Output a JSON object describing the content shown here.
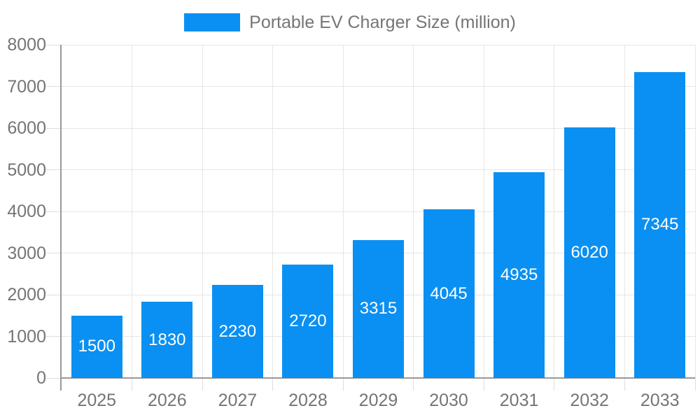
{
  "chart_data": {
    "type": "bar",
    "title": "",
    "legend_position": "top",
    "categories": [
      "2025",
      "2026",
      "2027",
      "2028",
      "2029",
      "2030",
      "2031",
      "2032",
      "2033"
    ],
    "series": [
      {
        "name": "Portable EV Charger Size (million)",
        "values": [
          1500,
          1830,
          2230,
          2720,
          3315,
          4045,
          4935,
          6020,
          7345
        ]
      }
    ],
    "xlabel": "",
    "ylabel": "",
    "ylim": [
      0,
      8000
    ],
    "yticks": [
      0,
      1000,
      2000,
      3000,
      4000,
      5000,
      6000,
      7000,
      8000
    ],
    "grid": true,
    "value_labels": "inside-center",
    "colors": {
      "bar": "#0a90f2",
      "grid_line": "#e6e6e6",
      "tick_line": "#dedede",
      "axis_line": "#999999",
      "axis_text": "#757575",
      "value_text": "#ffffff",
      "background": "#ffffff"
    }
  }
}
